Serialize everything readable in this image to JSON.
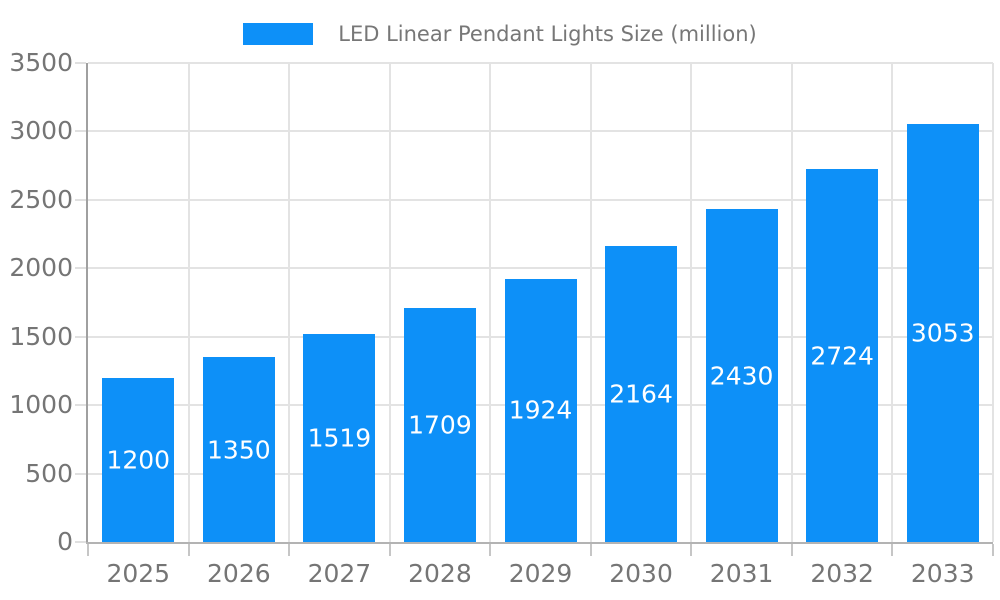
{
  "chart_data": {
    "type": "bar",
    "title": "LED Linear Pendant Lights Size (million)",
    "legend_entries": [
      "LED Linear Pendant Lights Size (million)"
    ],
    "legend_position": "top",
    "categories": [
      "2025",
      "2026",
      "2027",
      "2028",
      "2029",
      "2030",
      "2031",
      "2032",
      "2033"
    ],
    "series": [
      {
        "name": "LED Linear Pendant Lights Size (million)",
        "values": [
          1200,
          1350,
          1519,
          1709,
          1924,
          2164,
          2430,
          2724,
          3053
        ]
      }
    ],
    "bar_value_labels": [
      "1200",
      "1350",
      "1519",
      "1709",
      "1924",
      "2164",
      "2430",
      "2724",
      "3053"
    ],
    "xlabel": "",
    "ylabel": "",
    "ylim": [
      0,
      3500
    ],
    "y_tick_interval": 500,
    "y_tick_labels": [
      "0",
      "500",
      "1000",
      "1500",
      "2000",
      "2500",
      "3000",
      "3500"
    ],
    "grid": "horizontal-and-vertical"
  },
  "colors": {
    "bar": "#0d90f8",
    "bar_value_text": "#ffffff",
    "axis_text": "#757575",
    "legend_text": "#777777",
    "grid_line": "#e3e3e3",
    "y_axis_line": "#a0a0a0",
    "x_axis_line": "#b3b3b3",
    "tick": "#c6c6c6",
    "background": "#ffffff"
  }
}
